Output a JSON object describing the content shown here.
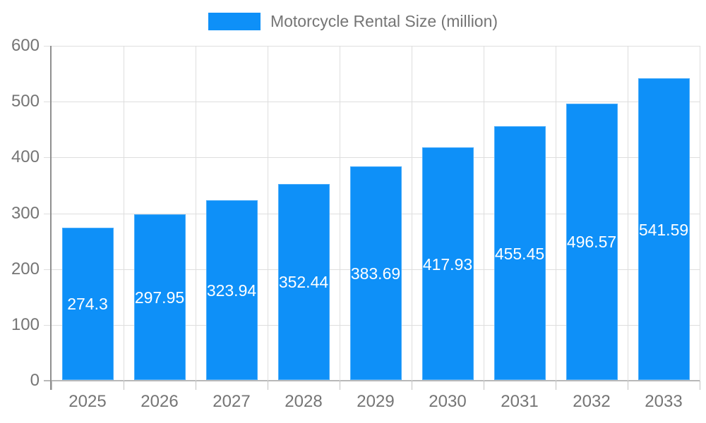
{
  "legend": {
    "label": "Motorcycle Rental Size (million)"
  },
  "chart_data": {
    "type": "bar",
    "title": "",
    "legend": [
      "Motorcycle Rental Size (million)"
    ],
    "legend_position": "top",
    "categories": [
      "2025",
      "2026",
      "2027",
      "2028",
      "2029",
      "2030",
      "2031",
      "2032",
      "2033"
    ],
    "series": [
      {
        "name": "Motorcycle Rental Size (million)",
        "values": [
          274.3,
          297.95,
          323.94,
          352.44,
          383.69,
          417.93,
          455.45,
          496.57,
          541.59
        ]
      }
    ],
    "value_labels": [
      "274.3",
      "297.95",
      "323.94",
      "352.44",
      "383.69",
      "417.93",
      "455.45",
      "496.57",
      "541.59"
    ],
    "xlabel": "",
    "ylabel": "",
    "ylim": [
      0,
      600
    ],
    "y_ticks": [
      0,
      100,
      200,
      300,
      400,
      500,
      600
    ],
    "grid": true,
    "colors": {
      "bar": "#0e90f8",
      "value_label": "#ffffff",
      "axis_text": "#757575",
      "grid_line": "#dedede",
      "axis_line": "#8f8f8f",
      "zero_line": "#b8b8b8"
    }
  }
}
